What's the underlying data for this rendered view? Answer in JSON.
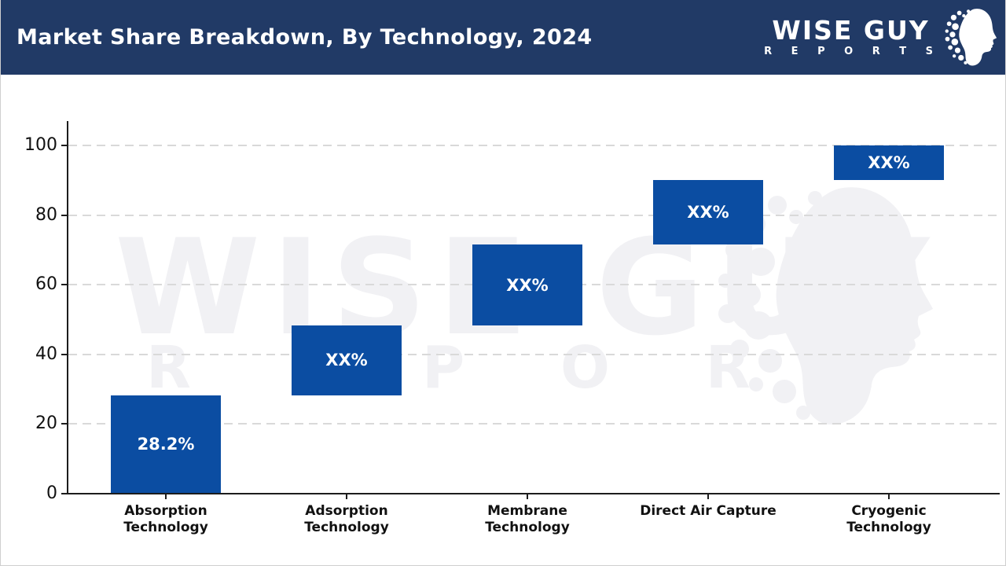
{
  "header": {
    "title": "Market Share Breakdown, By Technology, 2024",
    "logo": {
      "name": "WISE GUY",
      "sub": "R E P O R T S",
      "icon": "face-profile-dots-icon"
    }
  },
  "watermark": {
    "line1": "WISE GUY",
    "line2": "R E P O R T S",
    "icon": "face-profile-dots-icon"
  },
  "colors": {
    "header_bg": "#213a66",
    "bar": "#0b4da2",
    "bar_label": "#ffffff",
    "grid": "#d9d9d9",
    "axis": "#1c1c1c",
    "tick_text": "#111111",
    "watermark": "#f1f1f4",
    "frame_border": "#cfcfcf"
  },
  "chart_data": {
    "type": "bar",
    "variant": "waterfall",
    "title": "Market Share Breakdown, By Technology, 2024",
    "xlabel": "",
    "ylabel": "",
    "ylim": [
      0,
      107
    ],
    "yticks": [
      0,
      20,
      40,
      60,
      80,
      100
    ],
    "grid": "horizontal-dashed",
    "legend": "none",
    "categories": [
      "Absorption\nTechnology",
      "Adsorption\nTechnology",
      "Membrane\nTechnology",
      "Direct Air Capture",
      "Cryogenic\nTechnology"
    ],
    "bars": [
      {
        "category": "Absorption Technology",
        "label": "28.2%",
        "start": 0,
        "end": 28.2
      },
      {
        "category": "Adsorption Technology",
        "label": "XX%",
        "start": 28.2,
        "end": 48.2
      },
      {
        "category": "Membrane Technology",
        "label": "XX%",
        "start": 48.2,
        "end": 71.5
      },
      {
        "category": "Direct Air Capture",
        "label": "XX%",
        "start": 71.5,
        "end": 90.0
      },
      {
        "category": "Cryogenic Technology",
        "label": "XX%",
        "start": 90.0,
        "end": 100.0
      }
    ]
  }
}
